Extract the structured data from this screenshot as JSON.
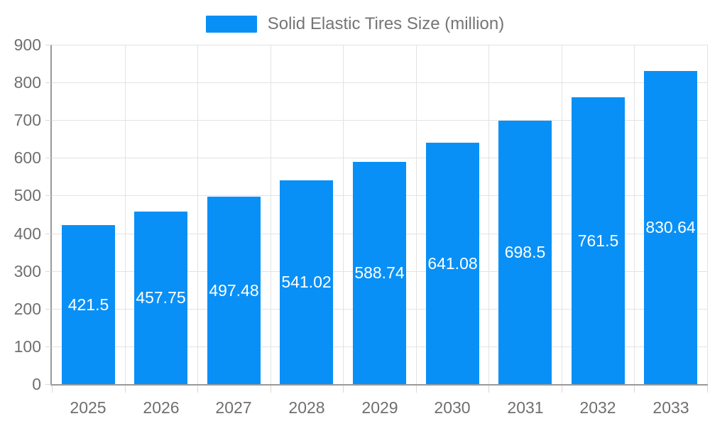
{
  "legend": {
    "label": "Solid Elastic Tires Size (million)"
  },
  "colors": {
    "bar": "#0990f6",
    "grid": "#e3e3e3",
    "axis": "#999999",
    "tick": "#d9d9d9",
    "axis_text": "#6f6f6f",
    "legend_text": "#757575",
    "value_text": "#ffffff"
  },
  "chart_data": {
    "type": "bar",
    "title": "Solid Elastic Tires Size (million)",
    "categories": [
      "2025",
      "2026",
      "2027",
      "2028",
      "2029",
      "2030",
      "2031",
      "2032",
      "2033"
    ],
    "values": [
      421.5,
      457.75,
      497.48,
      541.02,
      588.74,
      641.08,
      698.5,
      761.5,
      830.64
    ],
    "xlabel": "",
    "ylabel": "",
    "ylim": [
      0,
      900
    ],
    "ytick_interval": 100,
    "ytick_labels": [
      "0",
      "100",
      "200",
      "300",
      "400",
      "500",
      "600",
      "700",
      "800",
      "900"
    ],
    "grid": true,
    "value_labels_position": "inside-center",
    "legend_position": "top-center"
  }
}
